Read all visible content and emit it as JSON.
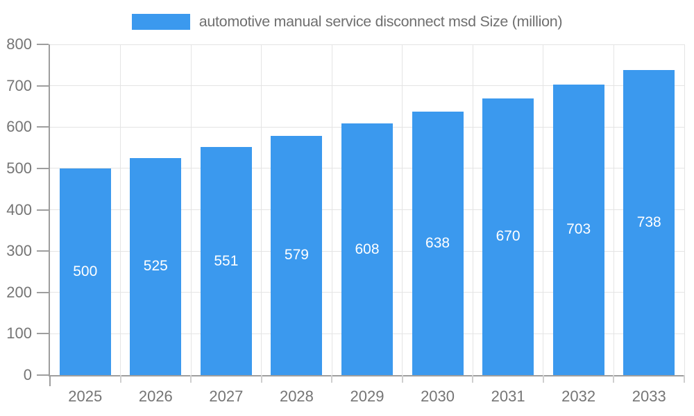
{
  "chart_data": {
    "type": "bar",
    "legend": "automotive manual service disconnect msd Size (million)",
    "legend_position": "top",
    "categories": [
      "2025",
      "2026",
      "2027",
      "2028",
      "2029",
      "2030",
      "2031",
      "2032",
      "2033"
    ],
    "values": [
      500,
      525,
      551,
      579,
      608,
      638,
      670,
      703,
      738
    ],
    "ylim": [
      0,
      800
    ],
    "yticks": [
      0,
      100,
      200,
      300,
      400,
      500,
      600,
      700,
      800
    ],
    "grid": true,
    "bar_value_labels_inside": true
  },
  "colors": {
    "bar": "#3B99EE",
    "bar_value_text": "#FFFFFF",
    "axis_line": "#9E9E9E",
    "gridline": "#E4E4E4",
    "x_tick": "#CFCFCF",
    "axis_text": "#757575",
    "legend_text": "#6F6F6F"
  }
}
